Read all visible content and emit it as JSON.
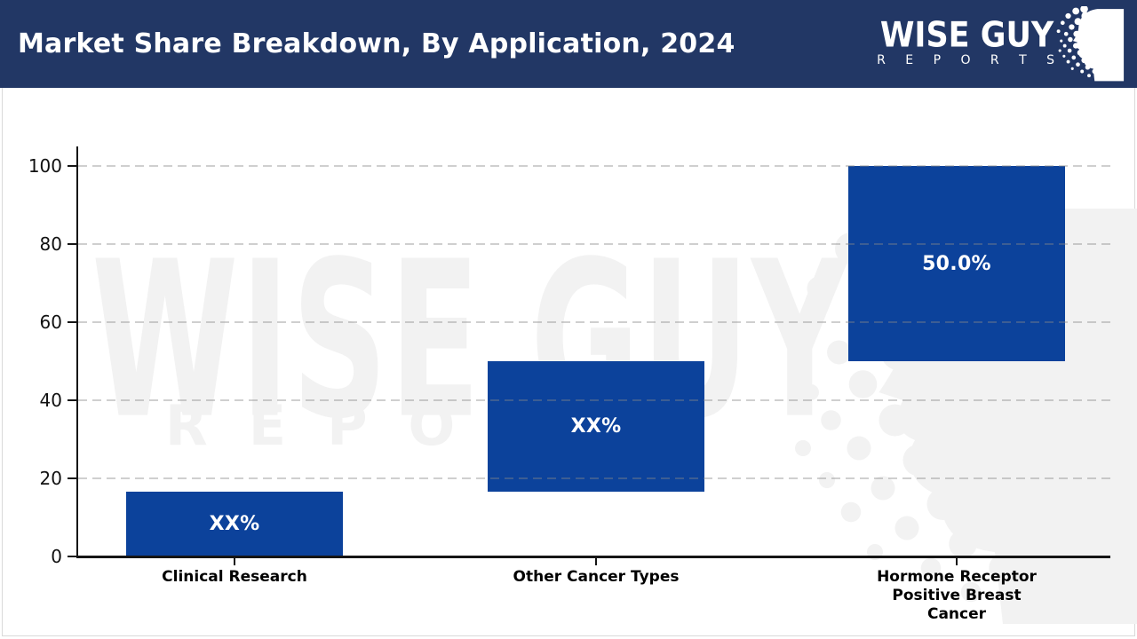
{
  "header": {
    "title": "Market Share Breakdown, By Application, 2024",
    "logo": {
      "line1": "WISE GUY",
      "line2": "R E P O R T S"
    }
  },
  "watermark": {
    "line1": "WISE GUY",
    "line2": "REPORTS"
  },
  "colors": {
    "header_bg": "#223765",
    "bar": "#0c429b",
    "bar_label_text": "#ffffff",
    "watermark": "#f2f2f2",
    "axis": "#151515",
    "gridline": "#d9d9d9"
  },
  "chart_data": {
    "type": "bar",
    "subtype": "waterfall",
    "title": "Market Share Breakdown, By Application, 2024",
    "xlabel": "",
    "ylabel": "",
    "ylim": [
      0,
      105
    ],
    "yticks": [
      0,
      20,
      40,
      60,
      80,
      100
    ],
    "grid": "horizontal-dashed",
    "legend": "none",
    "categories": [
      "Clinical Research",
      "Other Cancer Types",
      "Hormone Receptor Positive Breast Cancer"
    ],
    "categories_display": [
      "Clinical Research",
      "Other Cancer Types",
      "Hormone Receptor\nPositive Breast\nCancer"
    ],
    "bars": [
      {
        "category": "Clinical Research",
        "start": 0,
        "end": 16.7,
        "value_label": "XX%"
      },
      {
        "category": "Other Cancer Types",
        "start": 16.7,
        "end": 50.0,
        "value_label": "XX%"
      },
      {
        "category": "Hormone Receptor Positive Breast Cancer",
        "start": 50.0,
        "end": 100.0,
        "value_label": "50.0%"
      }
    ]
  }
}
